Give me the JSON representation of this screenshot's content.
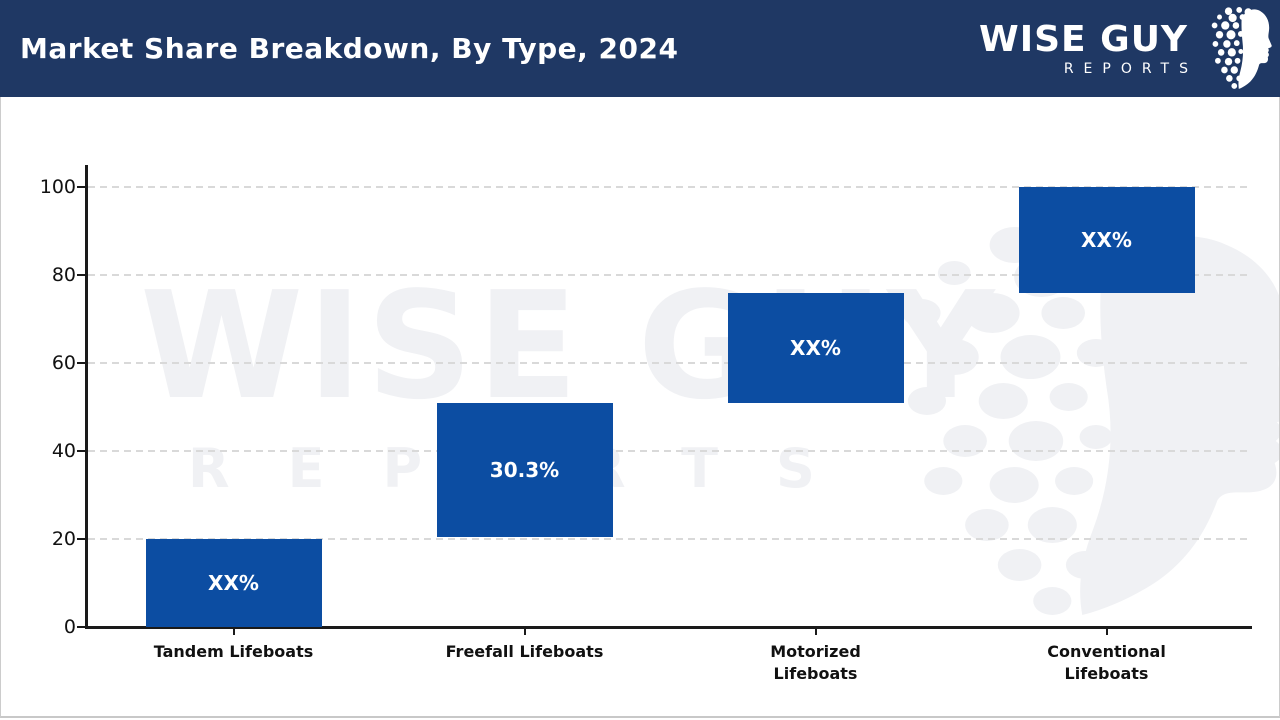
{
  "header": {
    "title": "Market Share Breakdown, By Type, 2024",
    "logo": {
      "line1": "WISE GUY",
      "line2": "REPORTS"
    }
  },
  "watermark": {
    "line1": "WISE GUY",
    "line2": "REPORTS"
  },
  "colors": {
    "header_bg": "#1f3864",
    "bar": "#0c4da2",
    "bar_label": "#ffffff",
    "gridline": "#d9d9d9",
    "axis": "#1a1a1a",
    "watermark": "#f0f1f4",
    "frame_border": "#cccccc"
  },
  "chart_data": {
    "type": "bar",
    "subtype": "floating_segment_waterfall",
    "title": "Market Share Breakdown, By Type, 2024",
    "categories": [
      "Tandem Lifeboats",
      "Freefall Lifeboats",
      "Motorized Lifeboats",
      "Conventional Lifeboats"
    ],
    "category_label_lines": [
      [
        "Tandem Lifeboats"
      ],
      [
        "Freefall Lifeboats"
      ],
      [
        "Motorized",
        "Lifeboats"
      ],
      [
        "Conventional",
        "Lifeboats"
      ]
    ],
    "series": [
      {
        "name": "Market share by type",
        "segments": [
          {
            "category": "Tandem Lifeboats",
            "start": 0,
            "end": 20,
            "label": "XX%"
          },
          {
            "category": "Freefall Lifeboats",
            "start": 20.5,
            "end": 50.8,
            "label": "30.3%"
          },
          {
            "category": "Motorized Lifeboats",
            "start": 50.9,
            "end": 75.9,
            "label": "XX%"
          },
          {
            "category": "Conventional Lifeboats",
            "start": 75.9,
            "end": 100,
            "label": "XX%"
          }
        ]
      }
    ],
    "xlabel": "",
    "ylabel": "",
    "ylim": [
      0,
      100
    ],
    "yticks": [
      0,
      20,
      40,
      60,
      80,
      100
    ],
    "grid": {
      "axis": "y",
      "style": "dashed",
      "color": "#d9d9d9"
    },
    "legend": null
  }
}
